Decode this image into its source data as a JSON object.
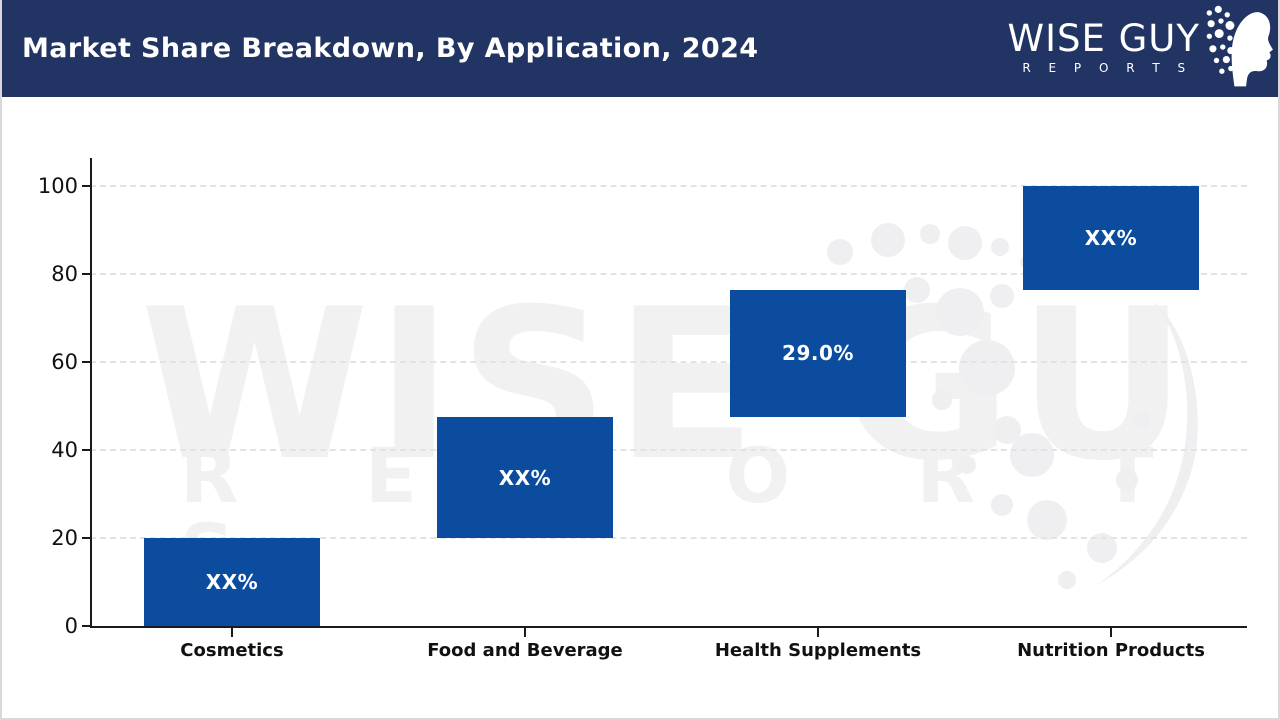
{
  "header": {
    "title": "Market Share Breakdown, By Application, 2024",
    "logo": {
      "name": "WISE GUY",
      "sub": "R E P O R T S"
    }
  },
  "watermark": {
    "large": "WISE GU",
    "small": "R E P O R T S"
  },
  "colors": {
    "header_bg": "#213463",
    "bar": "#0b4c9f",
    "grid": "#e3e3e3",
    "axis": "#1a1a1a",
    "watermark": "#f1f1f2",
    "bar_label": "#ffffff"
  },
  "chart_data": {
    "type": "bar",
    "subtype": "waterfall",
    "title": "Market Share Breakdown, By Application, 2024",
    "xlabel": "",
    "ylabel": "",
    "ylim": [
      0,
      100
    ],
    "yticks": [
      0,
      20,
      40,
      60,
      80,
      100
    ],
    "grid": "horizontal-dashed",
    "legend": "none",
    "categories": [
      "Cosmetics",
      "Food and Beverage",
      "Health Supplements",
      "Nutrition Products"
    ],
    "bars": [
      {
        "category": "Cosmetics",
        "start": 0,
        "end": 20,
        "value": 20,
        "label": "XX%"
      },
      {
        "category": "Food and Beverage",
        "start": 20,
        "end": 47.5,
        "value": 27.5,
        "label": "XX%"
      },
      {
        "category": "Health Supplements",
        "start": 47.5,
        "end": 76.5,
        "value": 29.0,
        "label": "29.0%"
      },
      {
        "category": "Nutrition Products",
        "start": 76.5,
        "end": 100,
        "value": 23.5,
        "label": "XX%"
      }
    ]
  }
}
